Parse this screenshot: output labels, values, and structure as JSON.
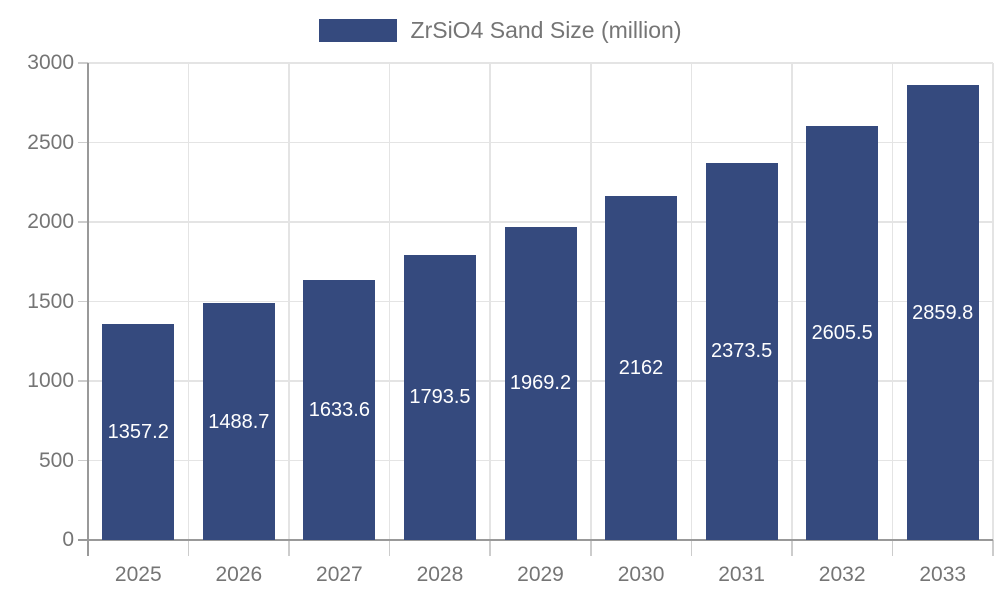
{
  "legend": {
    "label": "ZrSiO4 Sand Size (million)"
  },
  "chart_data": {
    "type": "bar",
    "title": "ZrSiO4 Sand Size (million)",
    "categories": [
      "2025",
      "2026",
      "2027",
      "2028",
      "2029",
      "2030",
      "2031",
      "2032",
      "2033"
    ],
    "series": [
      {
        "name": "ZrSiO4 Sand Size (million)",
        "values": [
          1357.2,
          1488.7,
          1633.6,
          1793.5,
          1969.2,
          2162,
          2373.5,
          2605.5,
          2859.8
        ]
      }
    ],
    "value_labels": [
      "1357.2",
      "1488.7",
      "1633.6",
      "1793.5",
      "1969.2",
      "2162",
      "2373.5",
      "2605.5",
      "2859.8"
    ],
    "xlabel": "",
    "ylabel": "",
    "ylim": [
      0,
      3000
    ],
    "yticks": [
      0,
      500,
      1000,
      1500,
      2000,
      2500,
      3000
    ],
    "grid": true,
    "legend_position": "top",
    "colors": {
      "bar": "#354a7e",
      "axis_line": "#999999",
      "gridline": "#e4e4e4",
      "tick": "#cccccc",
      "tick_label": "#757575",
      "value_label": "#ffffff",
      "background": "#ffffff"
    }
  }
}
